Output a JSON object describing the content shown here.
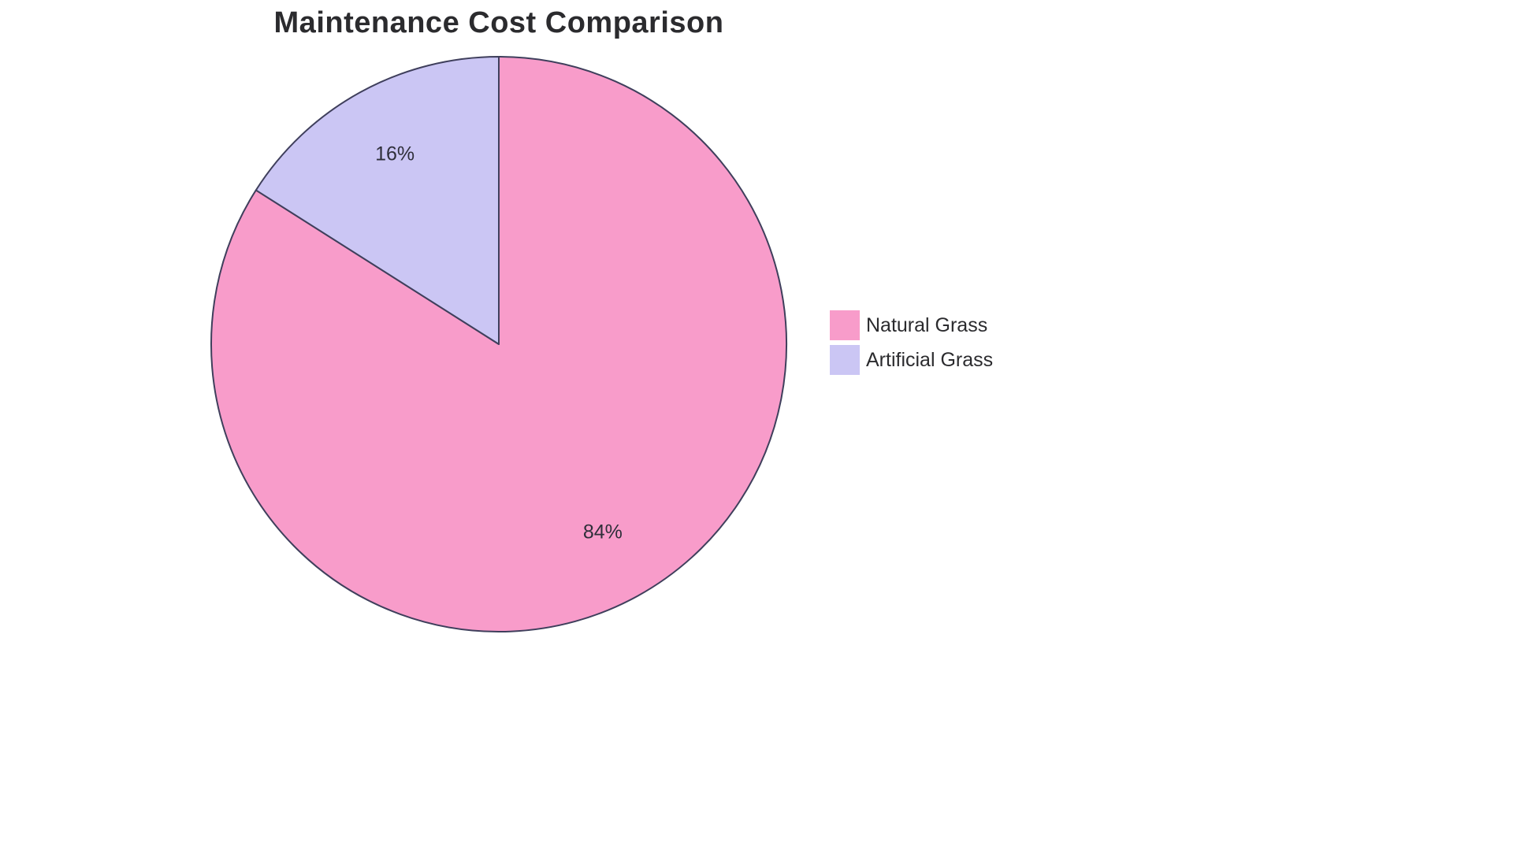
{
  "chart_data": {
    "type": "pie",
    "title": "Maintenance Cost Comparison",
    "categories": [
      "Natural Grass",
      "Artificial Grass"
    ],
    "values": [
      84,
      16
    ],
    "value_labels": [
      "84%",
      "16%"
    ],
    "colors": [
      "#F89CCA",
      "#CBC6F4"
    ],
    "stroke_color": "#3F3F5C",
    "start_angle_deg": -90,
    "direction": "clockwise",
    "legend_position": "right",
    "label_radius_fraction": 0.75,
    "background": "#FFFFFF"
  },
  "legend": {
    "items": [
      {
        "label": "Natural Grass",
        "color": "#F89CCA"
      },
      {
        "label": "Artificial Grass",
        "color": "#CBC6F4"
      }
    ]
  }
}
